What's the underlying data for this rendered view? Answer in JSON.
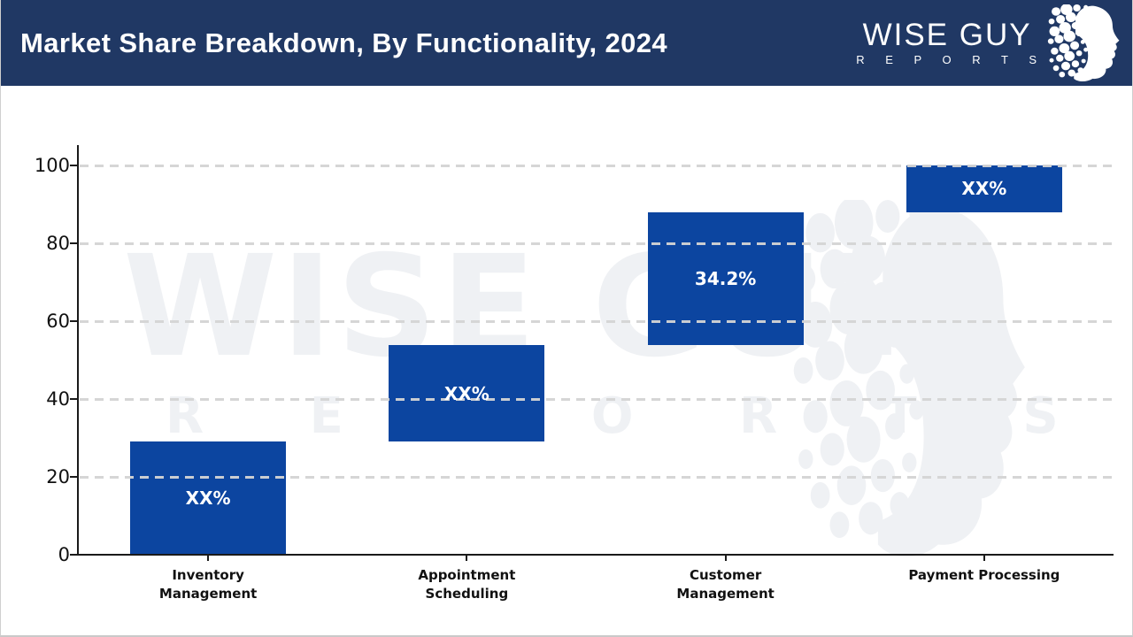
{
  "header": {
    "title": "Market Share Breakdown, By Functionality, 2024",
    "logo": {
      "name": "WISE GUY",
      "tagline": "R E P O R T S"
    }
  },
  "watermark": {
    "line1": "WISE GUY",
    "line2": "R E P O R T S"
  },
  "colors": {
    "header_bg": "#203864",
    "bar": "#0c45a0",
    "grid": "#d4d4d4",
    "watermark": "#eff1f4",
    "axis_text": "#111111",
    "bar_label": "#ffffff"
  },
  "chart_data": {
    "type": "bar",
    "subtype": "waterfall",
    "title": "Market Share Breakdown, By Functionality, 2024",
    "categories": [
      "Inventory Management",
      "Appointment Scheduling",
      "Customer Management",
      "Payment Processing"
    ],
    "category_lines": [
      [
        "Inventory",
        "Management"
      ],
      [
        "Appointment",
        "Scheduling"
      ],
      [
        "Customer",
        "Management"
      ],
      [
        "Payment Processing"
      ]
    ],
    "segments": [
      {
        "category": "Inventory Management",
        "start": 0,
        "end": 29,
        "value": 29,
        "label": "XX%"
      },
      {
        "category": "Appointment Scheduling",
        "start": 29,
        "end": 53.8,
        "value": 24.8,
        "label": "XX%"
      },
      {
        "category": "Customer Management",
        "start": 53.8,
        "end": 88,
        "value": 34.2,
        "label": "34.2%"
      },
      {
        "category": "Payment Processing",
        "start": 88,
        "end": 100,
        "value": 12,
        "label": "XX%"
      }
    ],
    "yticks": [
      0,
      20,
      40,
      60,
      80,
      100
    ],
    "ylim": [
      0,
      105
    ],
    "grid": "horizontal-dashed",
    "legend": "none"
  }
}
